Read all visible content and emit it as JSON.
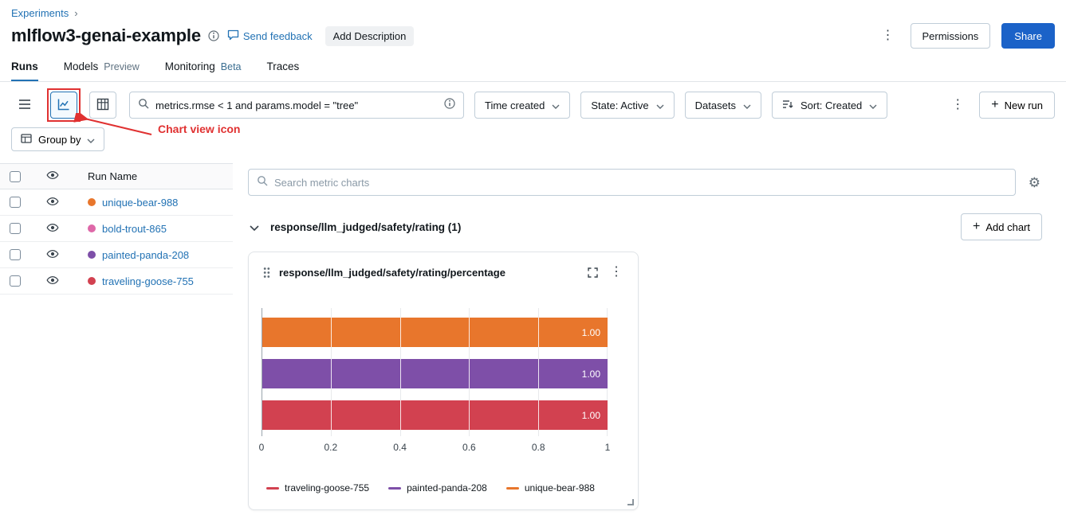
{
  "icons": {
    "kebab": "⋮",
    "plus": "+",
    "gear": "⚙",
    "breadcrumb_chevron": "›"
  },
  "colors": {
    "link": "#2272B4",
    "primary_button": "#1B62C8",
    "selected_border": "#2272B4",
    "annotation": "#E03131"
  },
  "breadcrumb": {
    "experiments": "Experiments"
  },
  "header": {
    "title": "mlflow3-genai-example",
    "send_feedback": "Send feedback",
    "add_description": "Add Description",
    "permissions": "Permissions",
    "share": "Share"
  },
  "tabs": [
    {
      "label": "Runs",
      "tag": ""
    },
    {
      "label": "Models",
      "tag": "Preview"
    },
    {
      "label": "Monitoring",
      "tag": "Beta"
    },
    {
      "label": "Traces",
      "tag": ""
    }
  ],
  "toolbar": {
    "search_value": "metrics.rmse < 1 and params.model = \"tree\"",
    "filters": [
      "Time created",
      "State: Active",
      "Datasets",
      "Sort: Created"
    ],
    "new_run": "New run"
  },
  "group_by": {
    "label": "Group by"
  },
  "annotation": {
    "label": "Chart view icon"
  },
  "runs_table": {
    "header": "Run Name",
    "rows": [
      {
        "name": "unique-bear-988",
        "color": "#E8762C"
      },
      {
        "name": "bold-trout-865",
        "color": "#DE68A8"
      },
      {
        "name": "painted-panda-208",
        "color": "#7E4FA8"
      },
      {
        "name": "traveling-goose-755",
        "color": "#D24150"
      }
    ]
  },
  "charts_panel": {
    "search_placeholder": "Search metric charts",
    "section_title": "response/llm_judged/safety/rating (1)",
    "add_chart": "Add chart",
    "card_title": "response/llm_judged/safety/rating/percentage"
  },
  "chart_data": {
    "type": "bar",
    "orientation": "horizontal",
    "title": "response/llm_judged/safety/rating/percentage",
    "categories": [
      "unique-bear-988",
      "painted-panda-208",
      "traveling-goose-755"
    ],
    "values": [
      1.0,
      1.0,
      1.0
    ],
    "value_labels": [
      "1.00",
      "1.00",
      "1.00"
    ],
    "colors": [
      "#E8762C",
      "#7E4FA8",
      "#D24150"
    ],
    "x_ticks": [
      "0",
      "0.2",
      "0.4",
      "0.6",
      "0.8",
      "1"
    ],
    "xlim": [
      0,
      1
    ],
    "grid": true,
    "legend_position": "bottom",
    "legend": [
      {
        "label": "traveling-goose-755",
        "color": "#D24150"
      },
      {
        "label": "painted-panda-208",
        "color": "#7E4FA8"
      },
      {
        "label": "unique-bear-988",
        "color": "#E8762C"
      }
    ]
  }
}
